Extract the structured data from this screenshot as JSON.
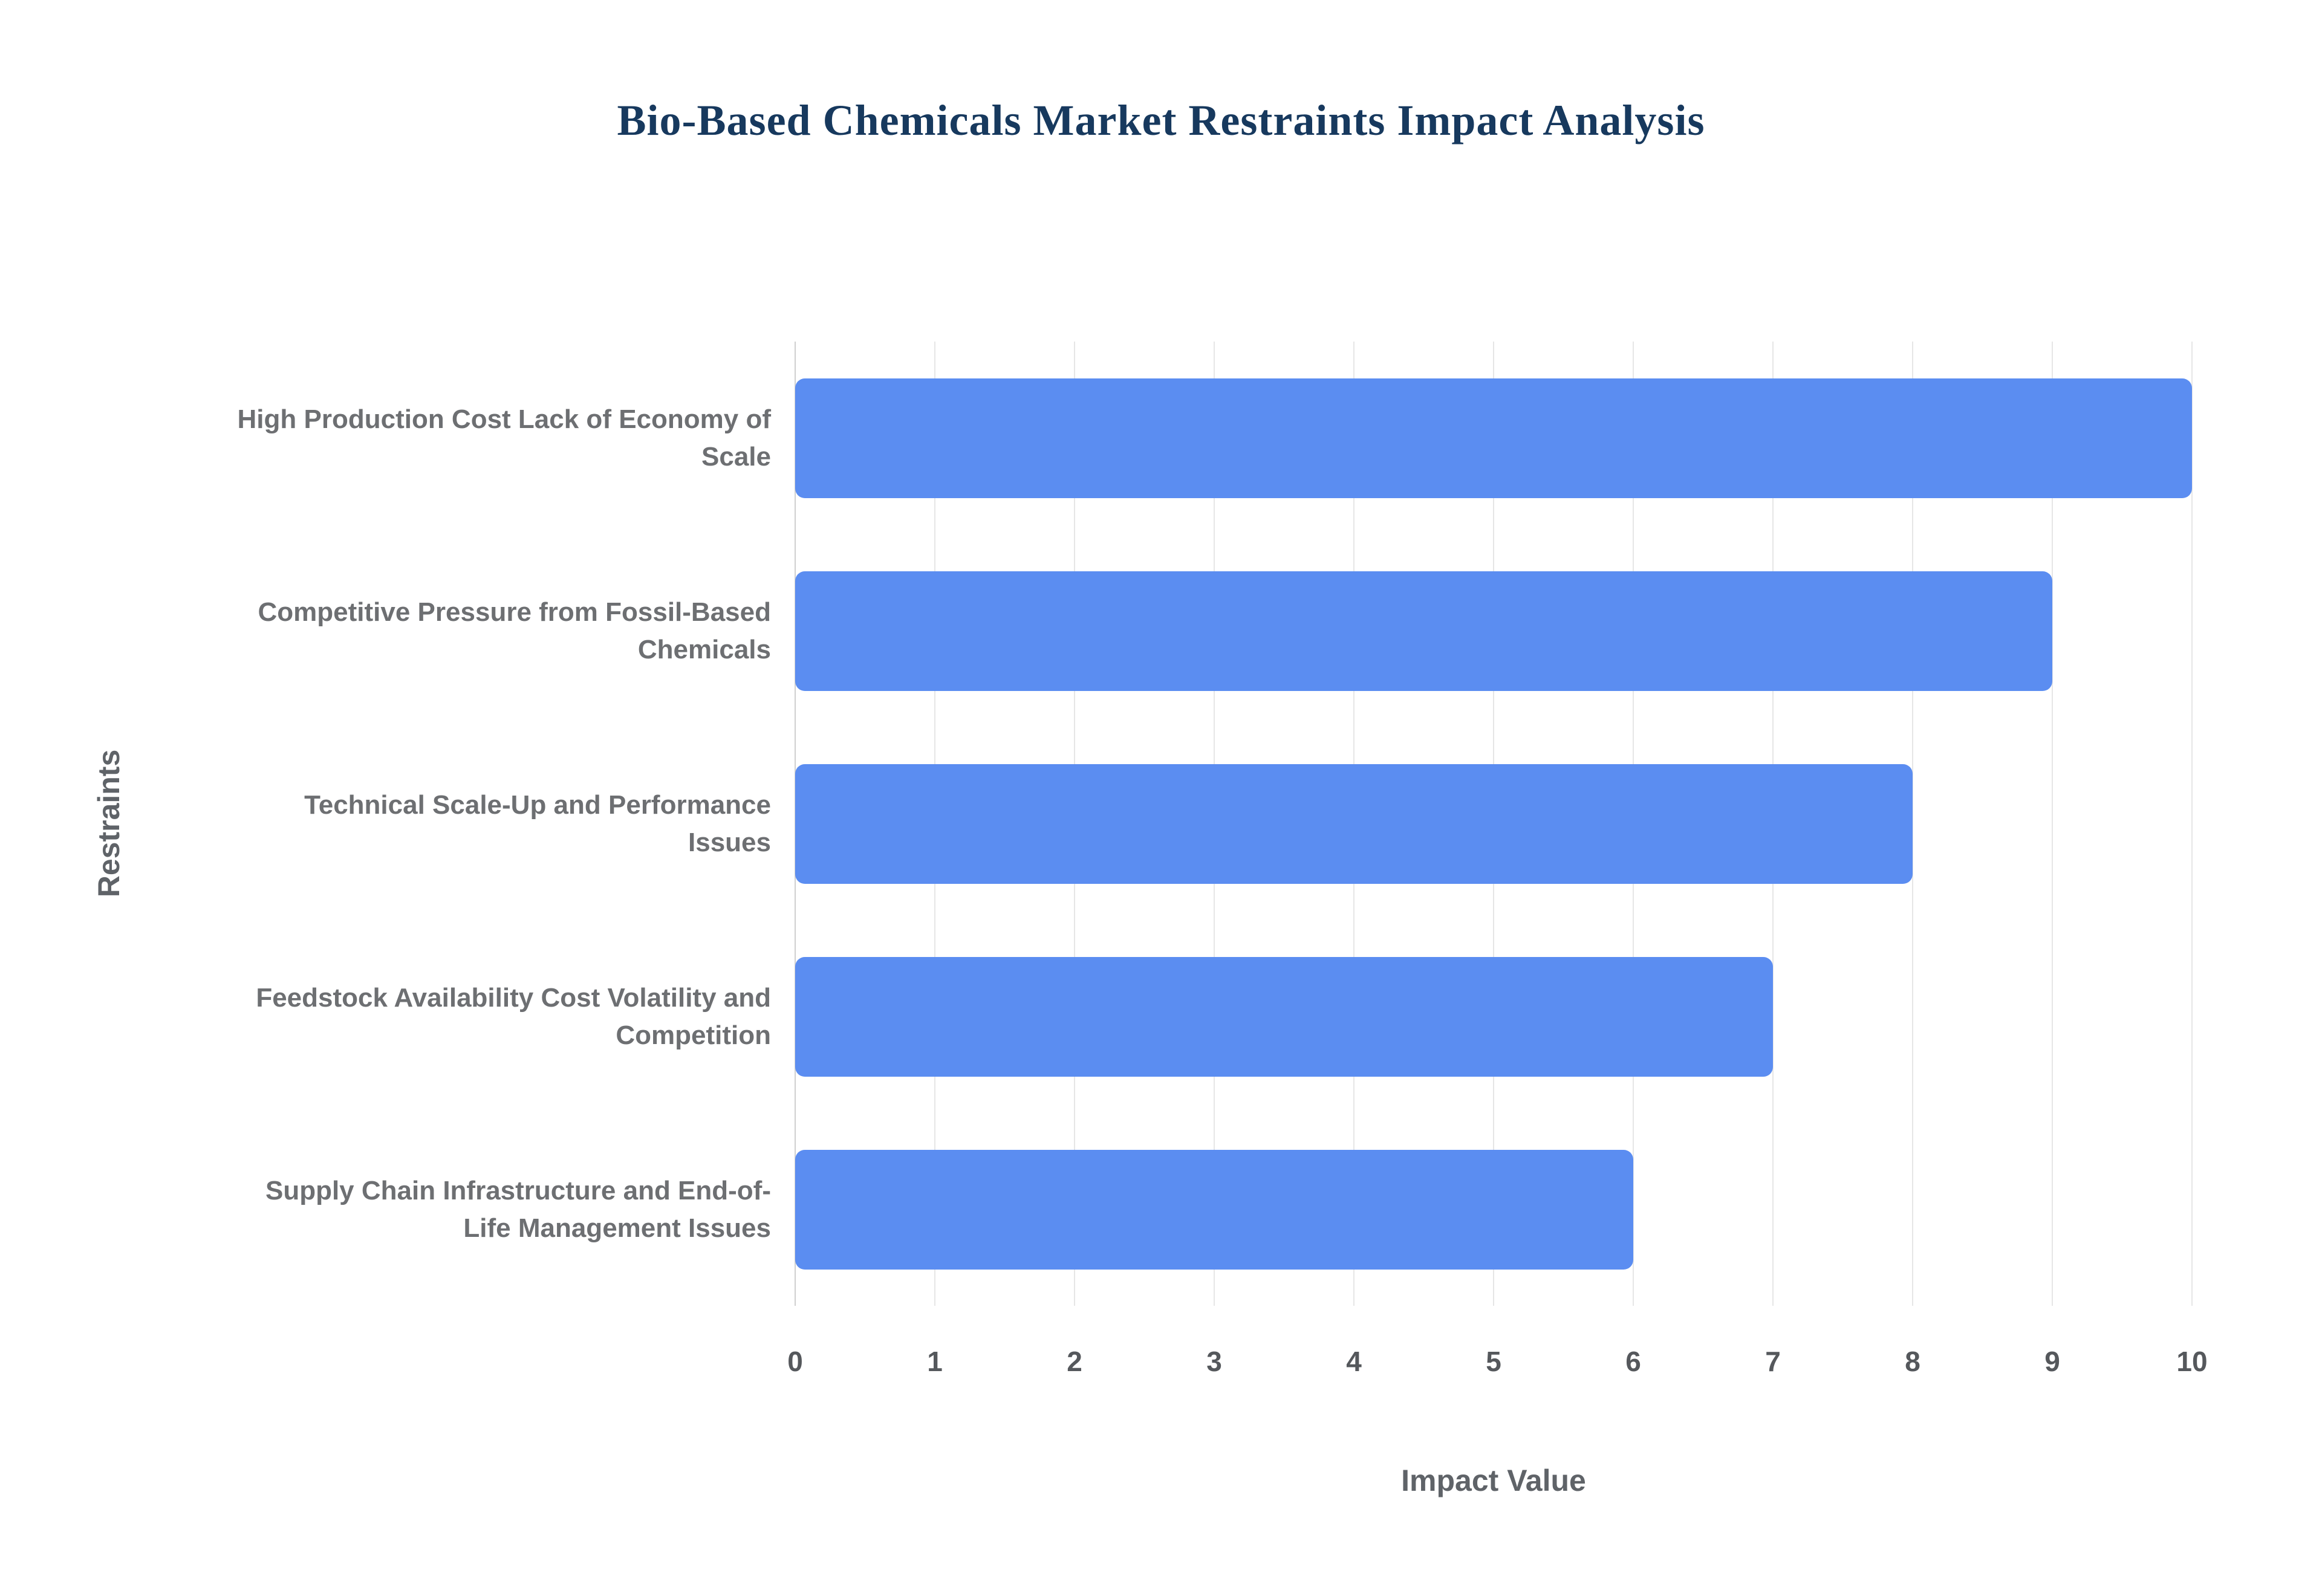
{
  "page": {
    "background": "#ffffff"
  },
  "chart_data": {
    "type": "bar",
    "orientation": "horizontal",
    "title": "Bio-Based Chemicals Market Restraints Impact Analysis",
    "xlabel": "Impact Value",
    "ylabel": "Restraints",
    "xlim": [
      0,
      10
    ],
    "xticks": [
      0,
      1,
      2,
      3,
      4,
      5,
      6,
      7,
      8,
      9,
      10
    ],
    "grid": true,
    "legend_position": "none",
    "bar_color": "#5b8df1",
    "categories": [
      "High Production Cost Lack of Economy of Scale",
      "Competitive Pressure from Fossil-Based Chemicals",
      "Technical Scale-Up and Performance Issues",
      "Feedstock Availability Cost Volatility and Competition",
      "Supply Chain Infrastructure and End-of-Life Management Issues"
    ],
    "values": [
      10,
      9,
      8,
      7,
      6
    ]
  }
}
